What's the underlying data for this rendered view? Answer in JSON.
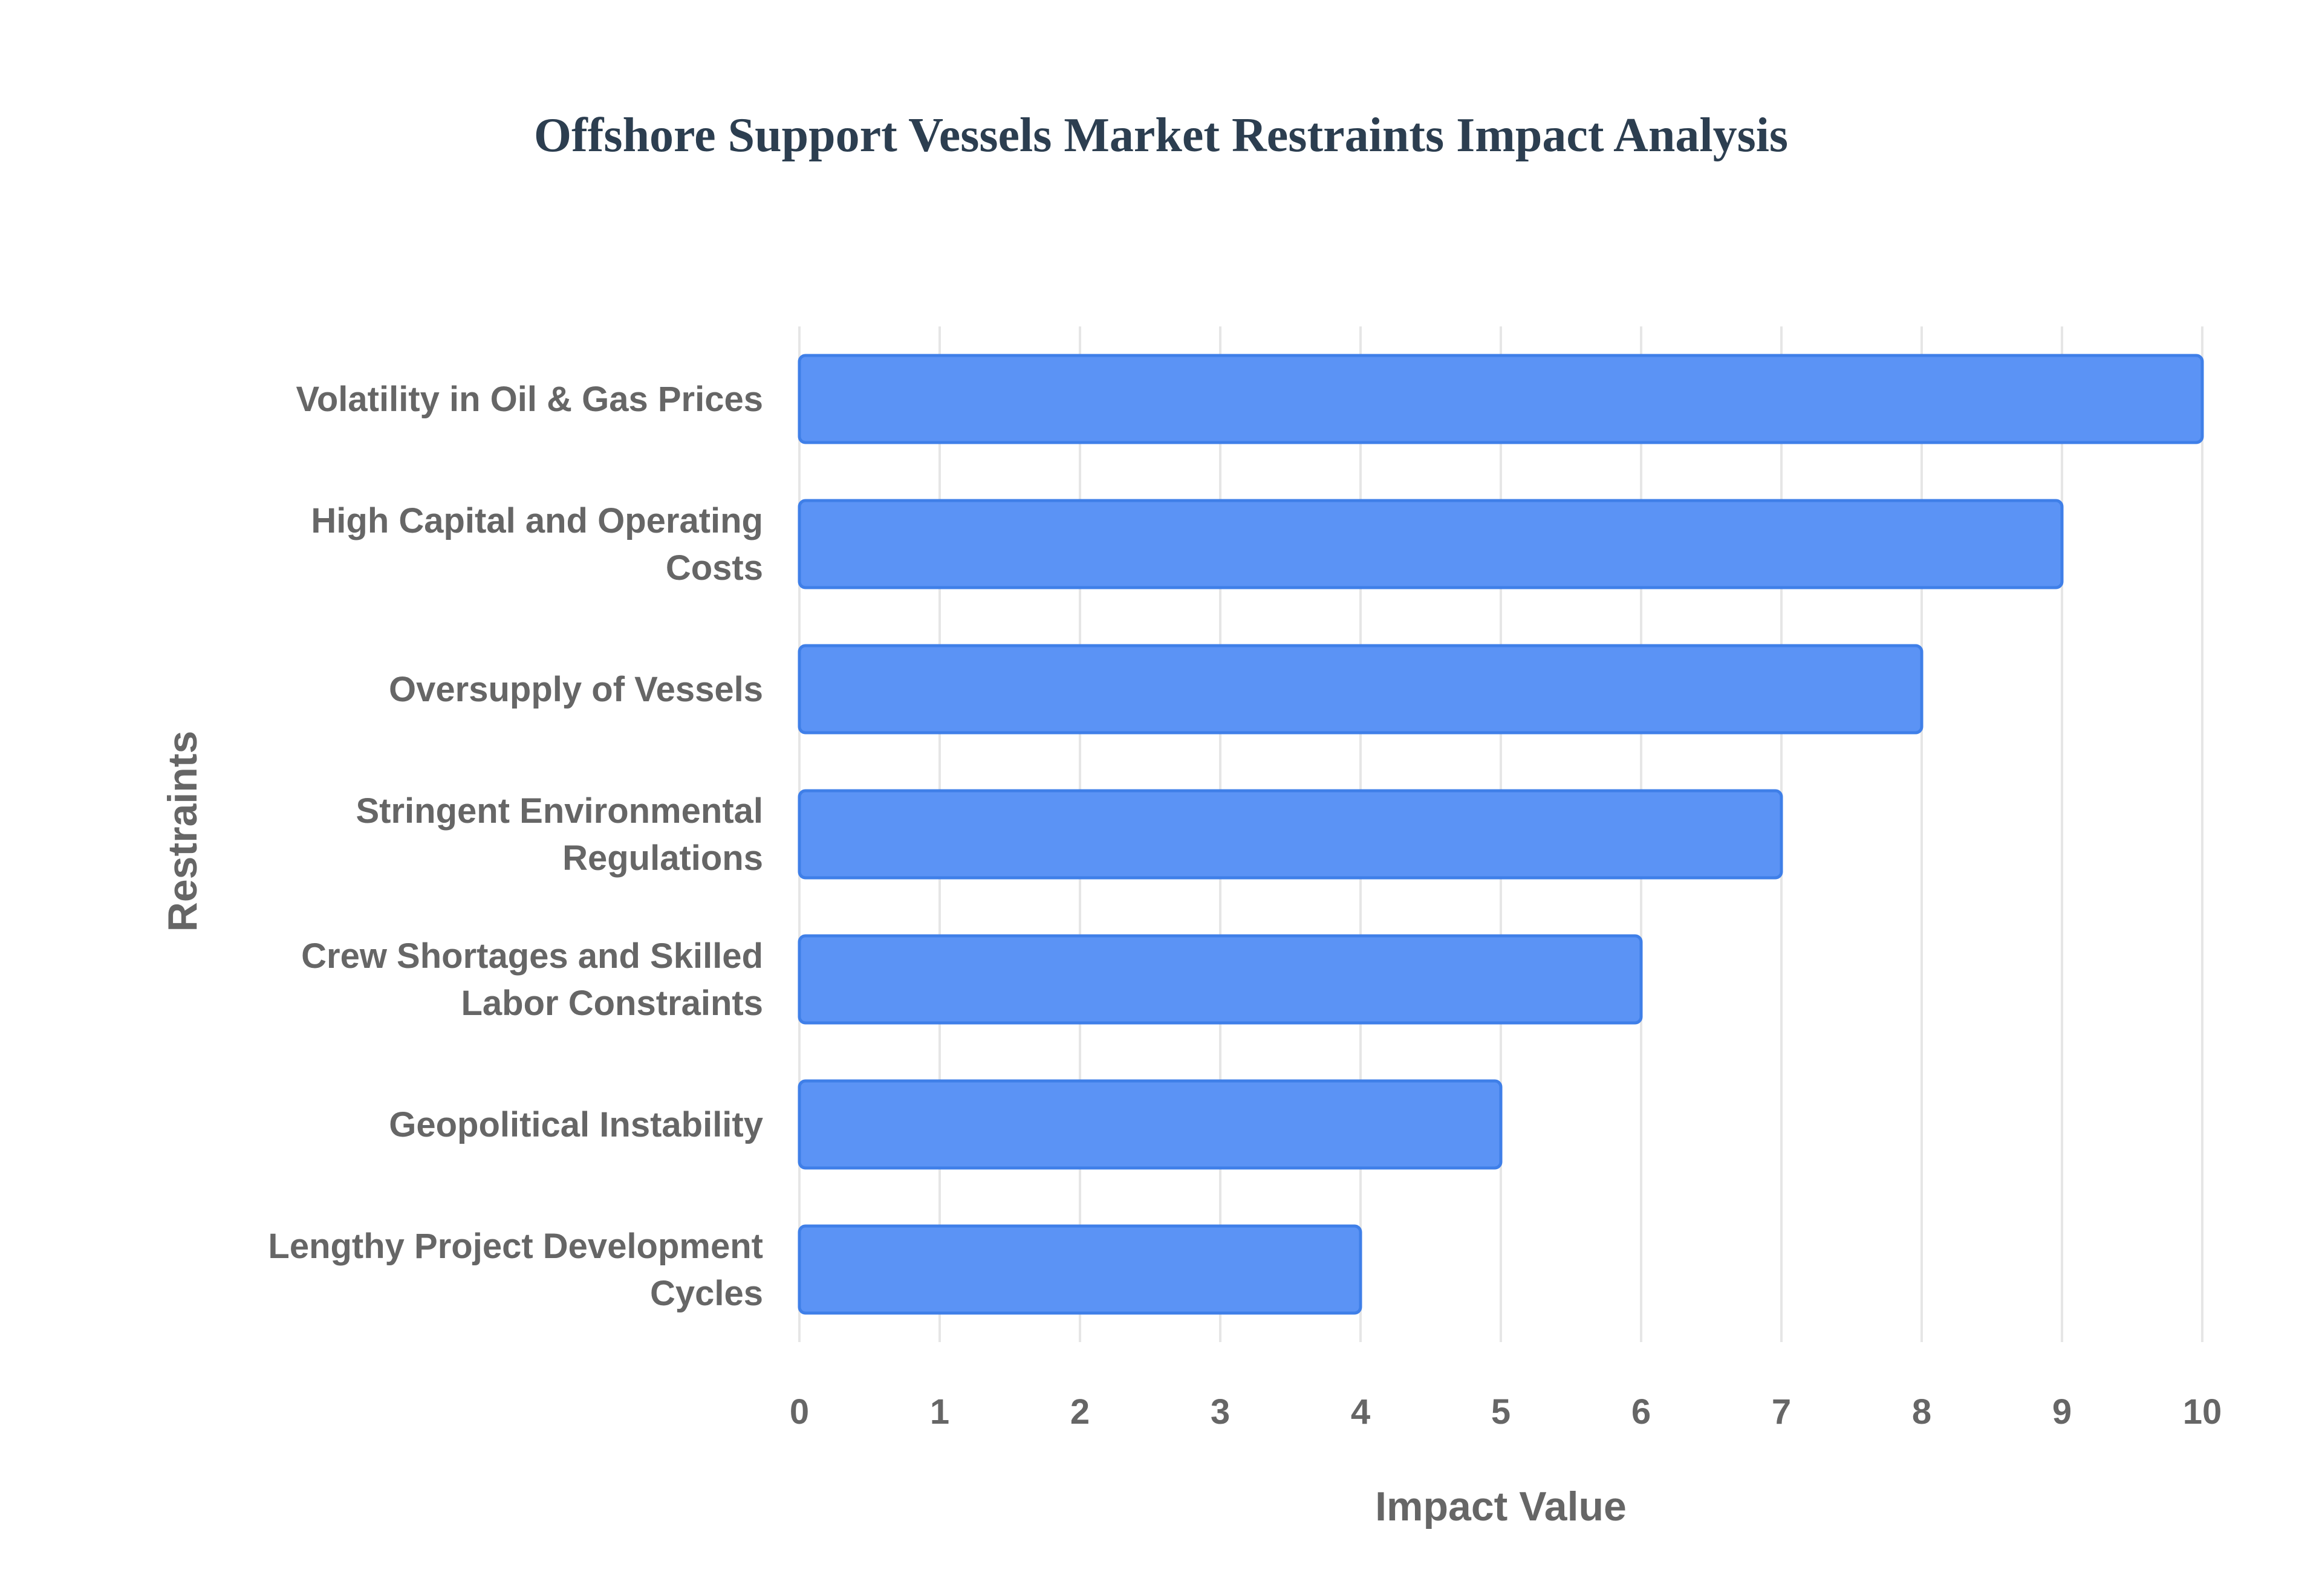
{
  "chart_data": {
    "type": "bar",
    "orientation": "horizontal",
    "title": "Offshore Support Vessels Market Restraints Impact Analysis",
    "xlabel": "Impact Value",
    "ylabel": "Restraints",
    "xlim": [
      0,
      10
    ],
    "xticks": [
      "0",
      "1",
      "2",
      "3",
      "4",
      "5",
      "6",
      "7",
      "8",
      "9",
      "10"
    ],
    "grid": true,
    "legend": "none",
    "colors": {
      "bar_fill": "#5b93f5",
      "bar_stroke": "#3f7fe8",
      "title": "#2c3e50",
      "text": "#666666",
      "grid": "#e6e6e6"
    },
    "categories": [
      [
        "Volatility in Oil & Gas Prices"
      ],
      [
        "High Capital and Operating",
        "Costs"
      ],
      [
        "Oversupply of Vessels"
      ],
      [
        "Stringent Environmental",
        "Regulations"
      ],
      [
        "Crew Shortages and Skilled",
        "Labor Constraints"
      ],
      [
        "Geopolitical Instability"
      ],
      [
        "Lengthy Project Development",
        "Cycles"
      ]
    ],
    "values": [
      10,
      9,
      8,
      7,
      6,
      5,
      4
    ]
  }
}
